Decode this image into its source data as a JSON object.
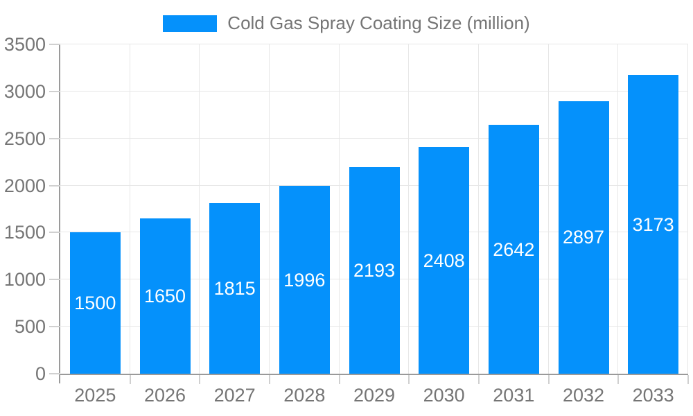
{
  "legend": {
    "label": "Cold Gas Spray Coating Size (million)"
  },
  "colors": {
    "background": "#ffffff",
    "bar": "#0591fb",
    "grid": "#e7e7e7",
    "tick": "#d0d0d0",
    "axis": "#9a9a9a",
    "text": "#757575",
    "value_text": "#ffffff"
  },
  "chart_data": {
    "type": "bar",
    "title": "Cold Gas Spray Coating Size (million)",
    "series_name": "Cold Gas Spray Coating Size (million)",
    "categories": [
      "2025",
      "2026",
      "2027",
      "2028",
      "2029",
      "2030",
      "2031",
      "2032",
      "2033"
    ],
    "values": [
      1500,
      1650,
      1815,
      1996,
      2193,
      2408,
      2642,
      2897,
      3173
    ],
    "xlabel": "",
    "ylabel": "",
    "ylim": [
      0,
      3500
    ],
    "yticks": [
      0,
      500,
      1000,
      1500,
      2000,
      2500,
      3000,
      3500
    ],
    "grid": true,
    "legend_position": "top-center",
    "value_labels": "inside-center",
    "bar_color": "#0591fb"
  }
}
